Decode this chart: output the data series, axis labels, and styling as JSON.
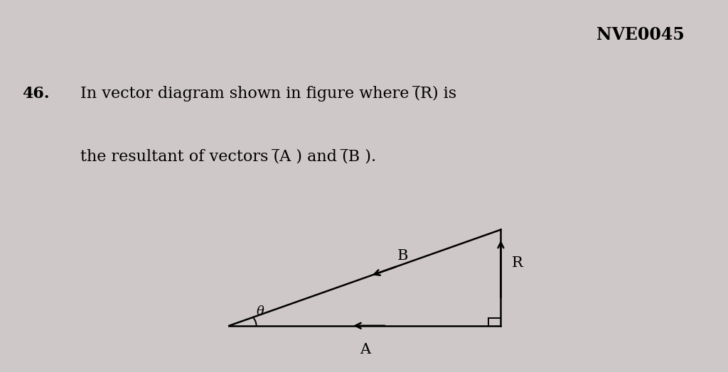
{
  "background_color": "#cfc8c8",
  "text_color": "#000000",
  "title_text": "NVE0045",
  "title_fontsize": 17,
  "question_number": "46.",
  "question_text_line1": "In vector diagram shown in figure where (̅R) is",
  "question_text_line2": "the resultant of vectors (̅A ) and (̅B ).",
  "diagram": {
    "O": [
      0.0,
      0.0
    ],
    "BR": [
      1.0,
      0.0
    ],
    "T": [
      1.0,
      0.55
    ],
    "theta_label": "θ",
    "label_A": "A",
    "label_B": "B",
    "label_R": "R"
  }
}
